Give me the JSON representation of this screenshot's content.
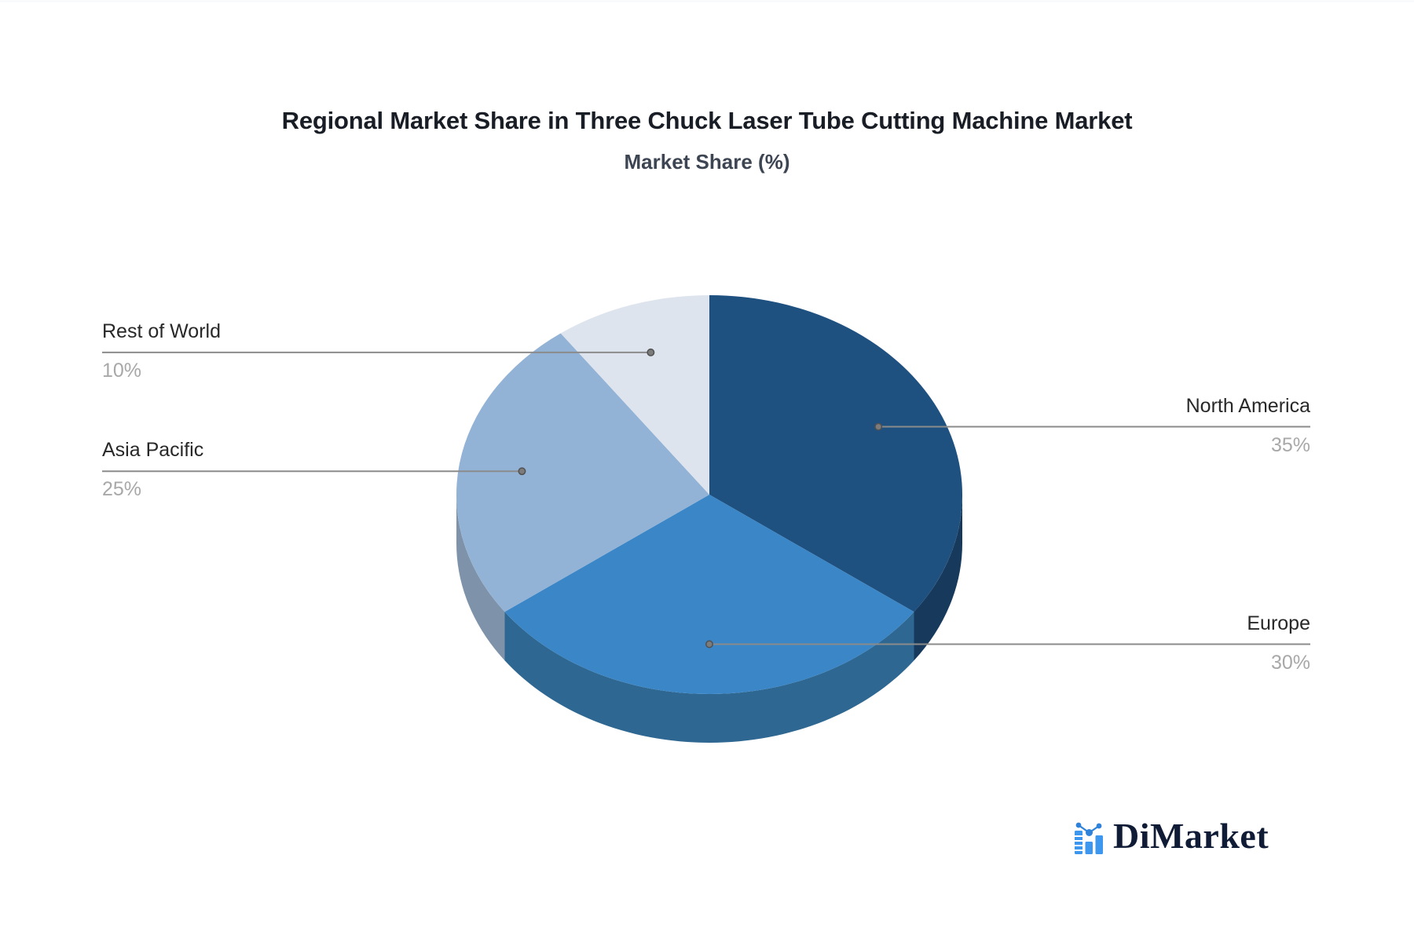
{
  "header": {
    "title": "Regional Market Share in Three Chuck Laser Tube Cutting Machine Market",
    "subtitle": "Market Share (%)"
  },
  "chart_data": {
    "type": "pie",
    "style": "3d",
    "title": "Regional Market Share in Three Chuck Laser Tube Cutting Machine Market",
    "subtitle": "Market Share (%)",
    "unit": "%",
    "direction": "clockwise",
    "start_angle_deg": 0,
    "legend_position": "callout-labels",
    "slices": [
      {
        "label": "North America",
        "value": 35,
        "display": "35%",
        "color": "#1e5080",
        "side_color": "#17395c"
      },
      {
        "label": "Europe",
        "value": 30,
        "display": "30%",
        "color": "#3a86c7",
        "side_color": "#2e6791"
      },
      {
        "label": "Asia Pacific",
        "value": 25,
        "display": "25%",
        "color": "#92b2d6",
        "side_color": "#7e93a9"
      },
      {
        "label": "Rest of World",
        "value": 10,
        "display": "10%",
        "color": "#dde4ee",
        "side_color": "#aebccf"
      }
    ],
    "callout": {
      "line_color": "#8b8b8b",
      "dot_fill": "#7c7c7c",
      "dot_stroke": "#515151",
      "label_color": "#282828",
      "value_color": "#a8a8a8"
    }
  },
  "logo": {
    "text": "DiMarket",
    "icon": "bar-line-chart-icon",
    "text_color": "#101c35",
    "icon_blue": "#3e97ef",
    "icon_dark_blue": "#2f82d9"
  }
}
